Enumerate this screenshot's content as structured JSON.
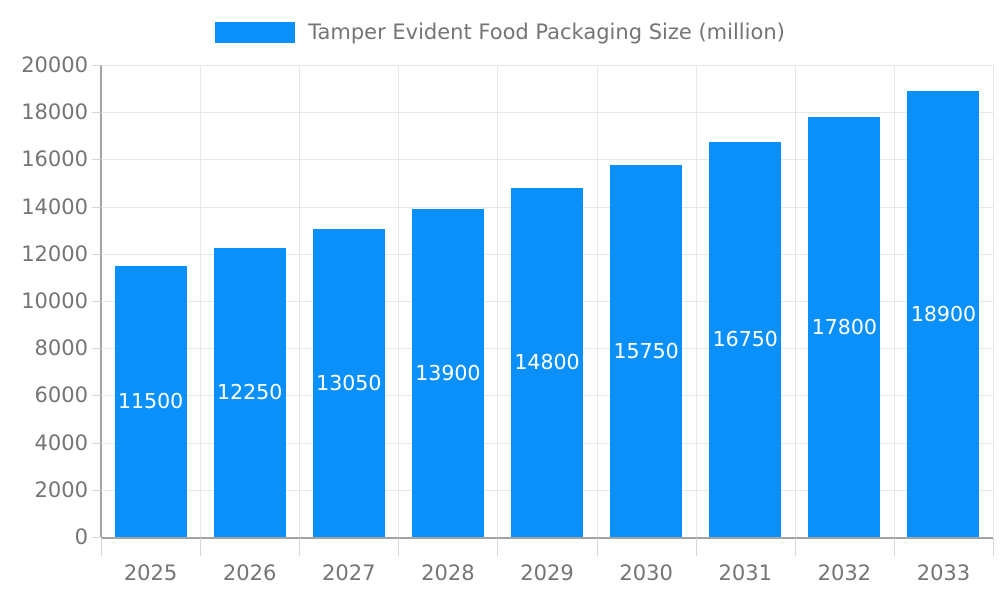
{
  "legend": {
    "label": "Tamper Evident Food Packaging Size (million)"
  },
  "chart_data": {
    "type": "bar",
    "title": "Tamper Evident Food Packaging Size (million)",
    "categories": [
      "2025",
      "2026",
      "2027",
      "2028",
      "2029",
      "2030",
      "2031",
      "2032",
      "2033"
    ],
    "values": [
      11500,
      12250,
      13050,
      13900,
      14800,
      15750,
      16750,
      17800,
      18900
    ],
    "series": [
      {
        "name": "Tamper Evident Food Packaging Size (million)",
        "values": [
          11500,
          12250,
          13050,
          13900,
          14800,
          15750,
          16750,
          17800,
          18900
        ]
      }
    ],
    "xlabel": "",
    "ylabel": "",
    "ylim": [
      0,
      20000
    ],
    "ytick_step": 2000,
    "ytick_labels": [
      "0",
      "2000",
      "4000",
      "6000",
      "8000",
      "10000",
      "12000",
      "14000",
      "16000",
      "18000",
      "20000"
    ],
    "grid": true,
    "legend_position": "top-center",
    "value_labels": "inside-center",
    "colors": {
      "bar": "#0990fb",
      "value_label": "#ffffff",
      "axis_text": "#757575",
      "legend_text": "#757575",
      "gridline": "#e7e7e7",
      "axis_line": "#a3a3a3",
      "tick": "#d6d6d6",
      "background": "#ffffff"
    }
  }
}
